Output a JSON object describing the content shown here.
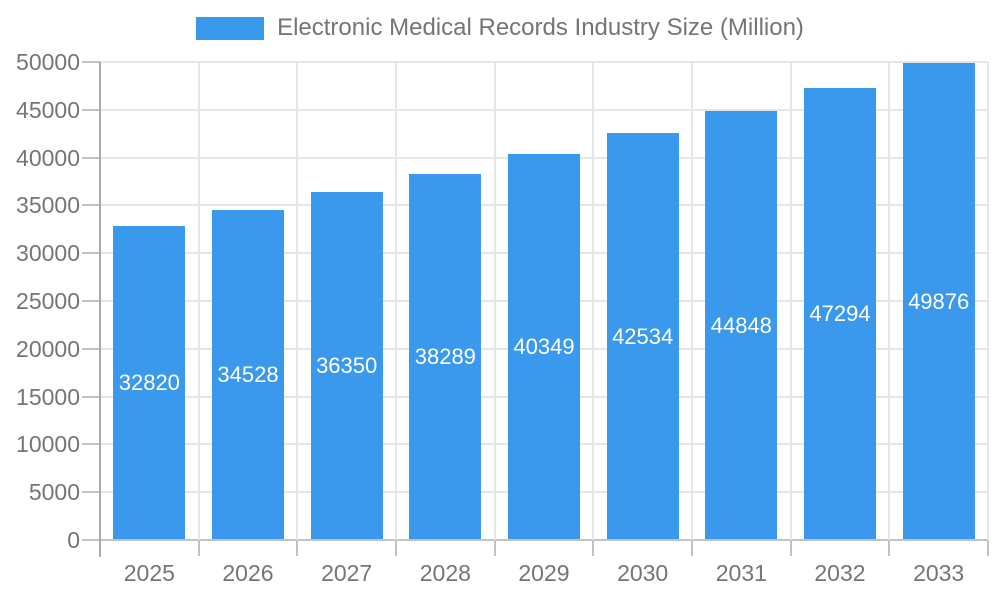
{
  "chart_data": {
    "type": "bar",
    "title": "Electronic Medical Records Industry Size (Million)",
    "legend_position": "top",
    "categories": [
      "2025",
      "2026",
      "2027",
      "2028",
      "2029",
      "2030",
      "2031",
      "2032",
      "2033"
    ],
    "series": [
      {
        "name": "Electronic Medical Records Industry Size (Million)",
        "values": [
          32820,
          34528,
          36350,
          38289,
          40349,
          42534,
          44848,
          47294,
          49876
        ]
      }
    ],
    "bar_value_labels": [
      "32820",
      "34528",
      "36350",
      "38289",
      "40349",
      "42534",
      "44848",
      "47294",
      "49876"
    ],
    "xlabel": "",
    "ylabel": "",
    "ylim": [
      0,
      50000
    ],
    "ytick_step": 5000,
    "ytick_labels": [
      "0",
      "5000",
      "10000",
      "15000",
      "20000",
      "25000",
      "30000",
      "35000",
      "40000",
      "45000",
      "50000"
    ],
    "grid": true
  },
  "colors": {
    "bar": "#3A99EC",
    "axis_text": "#757575",
    "annotation_text": "#FFFFFF",
    "gridline": "#E6E6E6",
    "tick": "#C2C2C2",
    "axis_line": "#ABABAB",
    "background": "#FFFFFF"
  }
}
